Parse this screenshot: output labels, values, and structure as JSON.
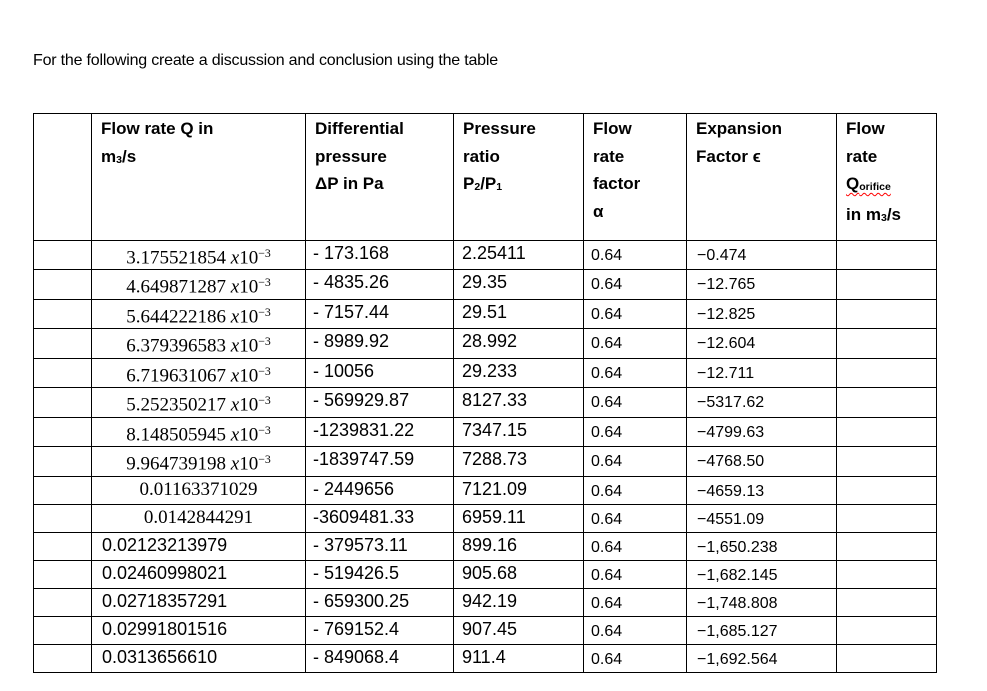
{
  "instruction": "For the following create a discussion and conclusion using the table",
  "colors": {
    "text": "#000000",
    "border": "#000000",
    "background": "#ffffff",
    "spellcheck_underline": "#ff0000"
  },
  "table": {
    "header_cells": [
      {
        "name": "col-row-label",
        "parts": []
      },
      {
        "name": "col-flow-rate-q",
        "parts": [
          {
            "t": "Flow rate Q in\nm"
          },
          {
            "t": "3",
            "sub": true
          },
          {
            "t": "/s"
          }
        ]
      },
      {
        "name": "col-differential-pressure",
        "parts": [
          {
            "t": "Differential\npressure\nΔP in Pa"
          }
        ]
      },
      {
        "name": "col-pressure-ratio",
        "parts": [
          {
            "t": "Pressure\nratio\nP"
          },
          {
            "t": "2",
            "sub": true
          },
          {
            "t": "/P"
          },
          {
            "t": "1",
            "sub": true
          }
        ]
      },
      {
        "name": "col-flow-rate-factor",
        "parts": [
          {
            "t": "Flow\nrate\nfactor\nα"
          }
        ]
      },
      {
        "name": "col-expansion-factor",
        "parts": [
          {
            "t": "Expansion\nFactor ϵ"
          }
        ]
      },
      {
        "name": "col-flow-rate-orifice",
        "parts": [
          {
            "t": "Flow\nrate\n"
          },
          {
            "spell": true,
            "children": [
              {
                "t": "Q"
              },
              {
                "t": "orifice",
                "sub": true
              }
            ]
          },
          {
            "t": "\nin m"
          },
          {
            "t": "3",
            "sub": true
          },
          {
            "t": "/s"
          }
        ]
      }
    ],
    "rows": [
      {
        "q": "3.175521854",
        "q_exp": "−3",
        "q_style": "math",
        "dp": "- 173.168",
        "ratio": "2.25411",
        "alpha": "0.64",
        "eps": "−0.474",
        "q_orifice": ""
      },
      {
        "q": "4.649871287",
        "q_exp": "−3",
        "q_style": "math",
        "dp": "- 4835.26",
        "ratio": "29.35",
        "alpha": "0.64",
        "eps": "−12.765",
        "q_orifice": ""
      },
      {
        "q": "5.644222186",
        "q_exp": "−3",
        "q_style": "math",
        "dp": "- 7157.44",
        "ratio": "29.51",
        "alpha": "0.64",
        "eps": "−12.825",
        "q_orifice": ""
      },
      {
        "q": "6.379396583",
        "q_exp": "−3",
        "q_style": "math",
        "dp": "- 8989.92",
        "ratio": "28.992",
        "alpha": "0.64",
        "eps": "−12.604",
        "q_orifice": ""
      },
      {
        "q": "6.719631067",
        "q_exp": "−3",
        "q_style": "math",
        "dp": "- 10056",
        "ratio": "29.233",
        "alpha": "0.64",
        "eps": "−12.711",
        "q_orifice": ""
      },
      {
        "q": "5.252350217",
        "q_exp": "−3",
        "q_style": "math",
        "dp": "- 569929.87",
        "ratio": "8127.33",
        "alpha": "0.64",
        "eps": "−5317.62",
        "q_orifice": ""
      },
      {
        "q": "8.148505945",
        "q_exp": "−3",
        "q_style": "math",
        "dp": "-1239831.22",
        "ratio": "7347.15",
        "alpha": "0.64",
        "eps": "−4799.63",
        "q_orifice": ""
      },
      {
        "q": "9.964739198",
        "q_exp": "−3",
        "q_style": "math",
        "dp": "-1839747.59",
        "ratio": "7288.73",
        "alpha": "0.64",
        "eps": "−4768.50",
        "q_orifice": ""
      },
      {
        "q": "0.01163371029",
        "q_exp": null,
        "q_style": "math",
        "dp": "- 2449656",
        "ratio": "7121.09",
        "alpha": "0.64",
        "eps": "−4659.13",
        "q_orifice": ""
      },
      {
        "q": "0.0142844291",
        "q_exp": null,
        "q_style": "math",
        "dp": "-3609481.33",
        "ratio": "6959.11",
        "alpha": "0.64",
        "eps": "−4551.09",
        "q_orifice": ""
      },
      {
        "q": "0.02123213979",
        "q_exp": null,
        "q_style": "plain",
        "dp": "- 379573.11",
        "ratio": "899.16",
        "alpha": "0.64",
        "eps": "−1,650.238",
        "q_orifice": ""
      },
      {
        "q": "0.02460998021",
        "q_exp": null,
        "q_style": "plain",
        "dp": "- 519426.5",
        "ratio": "905.68",
        "alpha": "0.64",
        "eps": "−1,682.145",
        "q_orifice": ""
      },
      {
        "q": "0.02718357291",
        "q_exp": null,
        "q_style": "plain",
        "dp": "- 659300.25",
        "ratio": "942.19",
        "alpha": "0.64",
        "eps": "−1,748.808",
        "q_orifice": ""
      },
      {
        "q": "0.02991801516",
        "q_exp": null,
        "q_style": "plain",
        "dp": "- 769152.4",
        "ratio": "907.45",
        "alpha": "0.64",
        "eps": "−1,685.127",
        "q_orifice": ""
      },
      {
        "q": "0.0313656610",
        "q_exp": null,
        "q_style": "plain",
        "dp": "- 849068.4",
        "ratio": "911.4",
        "alpha": "0.64",
        "eps": "−1,692.564",
        "q_orifice": ""
      }
    ]
  }
}
